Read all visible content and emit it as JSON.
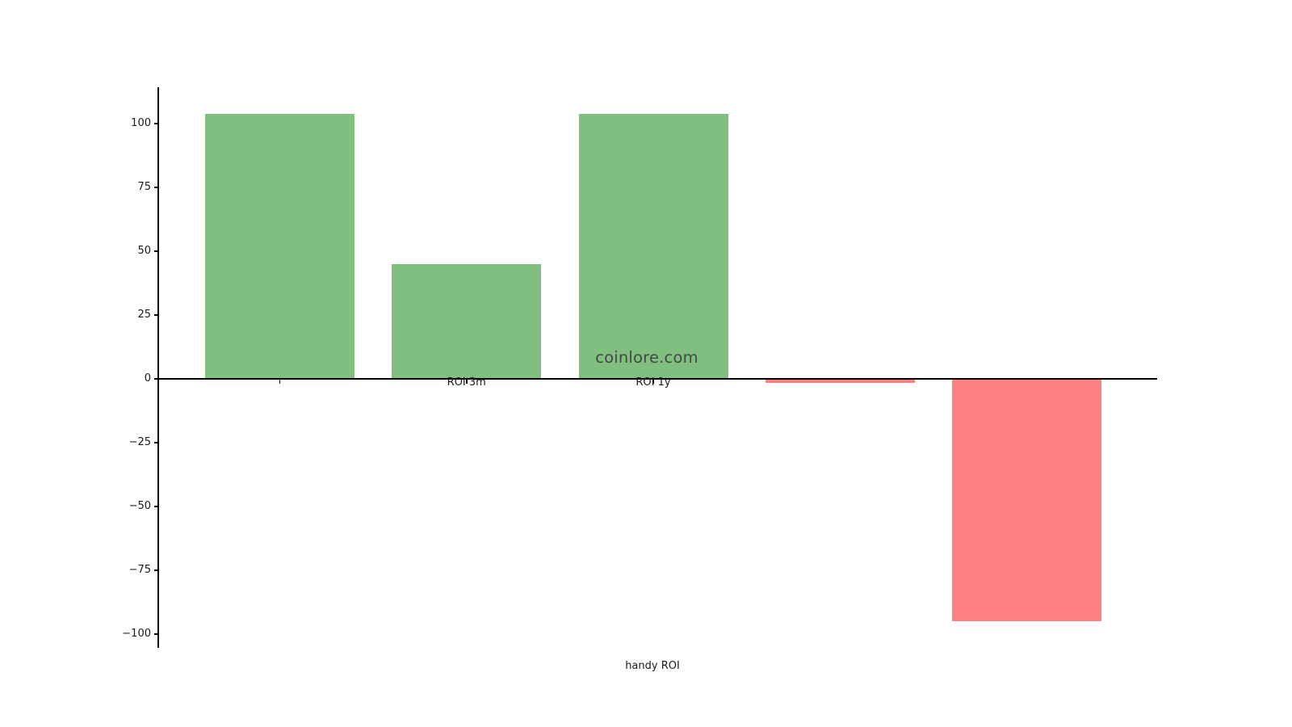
{
  "page": {
    "background": "#ffffff"
  },
  "chart_data": {
    "type": "bar",
    "title": "",
    "xlabel": "handy ROI",
    "ylabel": "",
    "watermark": "coinlore.com",
    "categories": [
      "",
      "ROI 3m",
      "ROI 1y",
      "",
      ""
    ],
    "values": [
      104,
      45,
      104,
      -1.6,
      -95
    ],
    "bar_colors": [
      "#80bf80",
      "#80bf80",
      "#80bf80",
      "#ff8080",
      "#ff8080"
    ],
    "xticks_shown": [
      0,
      1,
      2
    ],
    "yticks": [
      {
        "label": "100",
        "value": 100
      },
      {
        "label": "75",
        "value": 75
      },
      {
        "label": "50",
        "value": 50
      },
      {
        "label": "25",
        "value": 25
      },
      {
        "label": "0",
        "value": 0
      },
      {
        "label": "−25",
        "value": -25
      },
      {
        "label": "−50",
        "value": -50
      },
      {
        "label": "−75",
        "value": -75
      },
      {
        "label": "−100",
        "value": -100
      }
    ],
    "ylim": [
      -105,
      114
    ],
    "grid": false,
    "legend": null,
    "colors": {
      "positive": "#80bf80",
      "negative": "#ff8080",
      "axis": "#000000",
      "text": "#1a1a1a",
      "watermark": "#3f4a42"
    }
  }
}
